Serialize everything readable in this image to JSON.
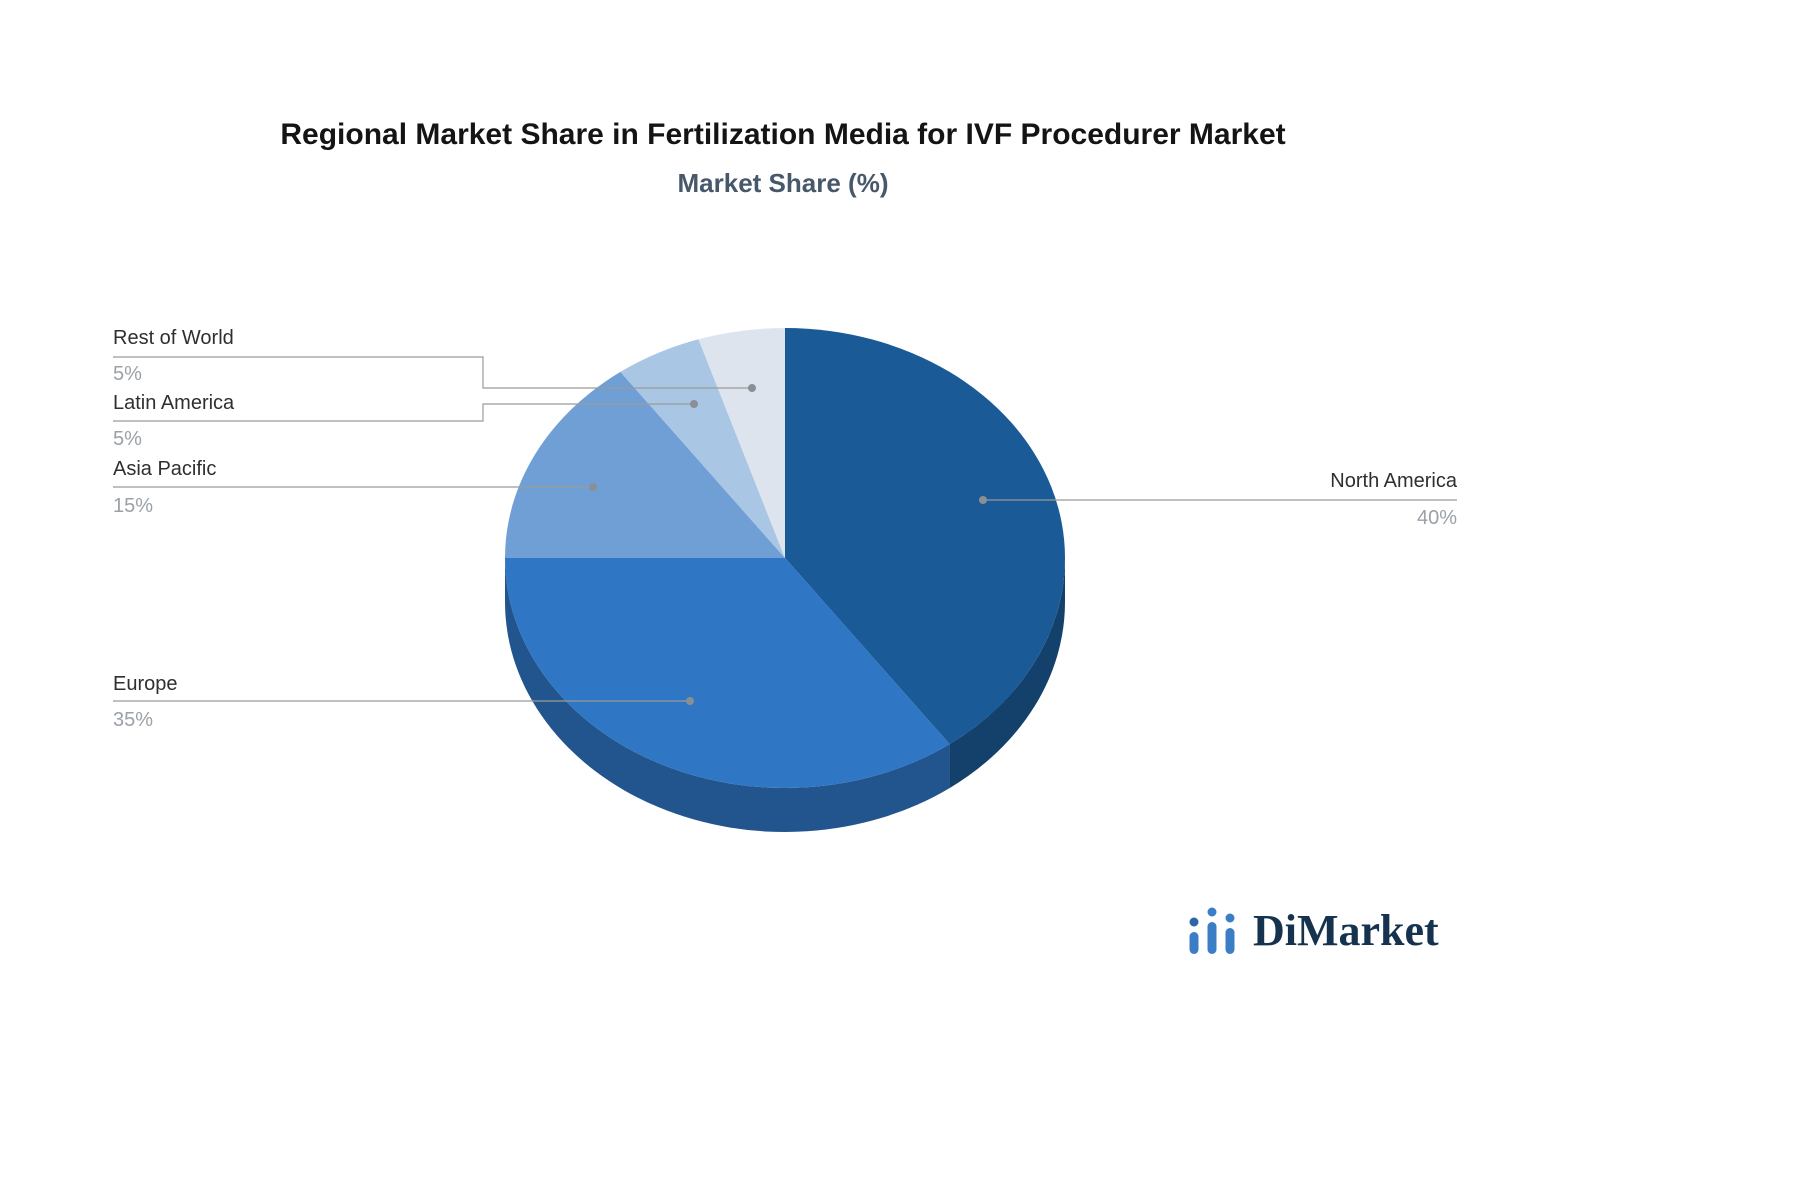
{
  "title": "Regional Market Share in Fertilization Media for IVF Procedurer Market",
  "subtitle": "Market Share (%)",
  "logo": {
    "text": "DiMarket"
  },
  "chart_data": {
    "type": "pie",
    "title": "Regional Market Share in Fertilization Media for IVF Procedurer Market",
    "subtitle": "Market Share (%)",
    "unit": "%",
    "start_angle_deg": 0,
    "direction": "clockwise",
    "style": "3d",
    "legend_position": "callout-labels",
    "slices": [
      {
        "label": "North America",
        "value": 40,
        "value_label": "40%",
        "color": "#1A5A96"
      },
      {
        "label": "Europe",
        "value": 35,
        "value_label": "35%",
        "color": "#2F76C4"
      },
      {
        "label": "Asia Pacific",
        "value": 15,
        "value_label": "15%",
        "color": "#6F9FD4"
      },
      {
        "label": "Latin America",
        "value": 5,
        "value_label": "5%",
        "color": "#A9C6E5"
      },
      {
        "label": "Rest of World",
        "value": 5,
        "value_label": "5%",
        "color": "#DEE4EE"
      }
    ]
  }
}
